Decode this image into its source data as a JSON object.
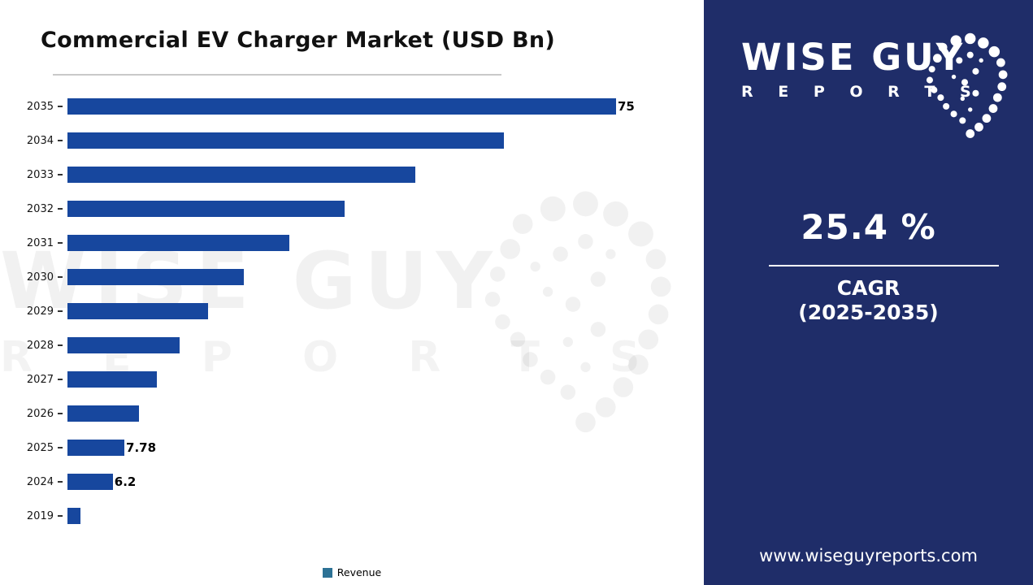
{
  "chart": {
    "title": "Commercial EV Charger Market (USD Bn)",
    "legend_label": "Revenue",
    "legend_color": "#2d7295",
    "bar_color": "#17479e"
  },
  "chart_data": {
    "type": "bar",
    "orientation": "horizontal",
    "title": "Commercial EV Charger Market (USD Bn)",
    "xlabel": "",
    "ylabel": "",
    "xlim": [
      0,
      80
    ],
    "grid": false,
    "legend_position": "bottom",
    "legend": [
      "Revenue"
    ],
    "categories": [
      "2035",
      "2034",
      "2033",
      "2032",
      "2031",
      "2030",
      "2029",
      "2028",
      "2027",
      "2026",
      "2025",
      "2024",
      "2019"
    ],
    "values": [
      75,
      59.7,
      47.6,
      37.9,
      30.3,
      24.1,
      19.2,
      15.3,
      12.2,
      9.8,
      7.78,
      6.2,
      1.8
    ],
    "labels": [
      "75",
      "",
      "",
      "",
      "",
      "",
      "",
      "",
      "",
      "",
      "7.78",
      "6.2",
      ""
    ]
  },
  "watermark": {
    "line1": "WISE GUY",
    "line2": "R E P O R T S"
  },
  "sidebar": {
    "bg_color": "#1f2d69",
    "logo_line1": "WISE GUY",
    "logo_line2": "R E P O R T S",
    "cagr_value": "25.4 %",
    "cagr_label": "CAGR",
    "cagr_range": "(2025-2035)",
    "website": "www.wiseguyreports.com"
  }
}
